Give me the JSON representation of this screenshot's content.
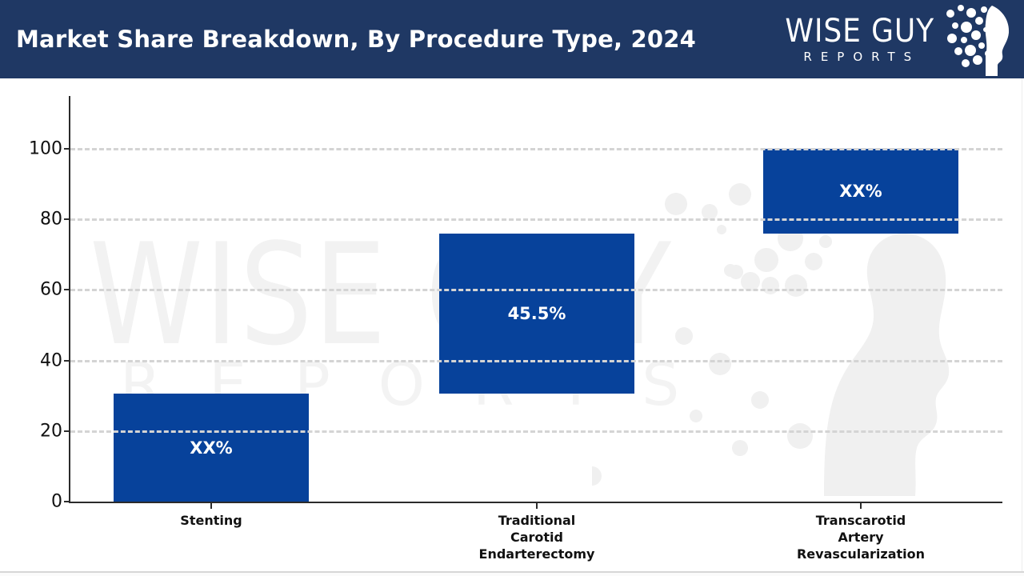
{
  "header": {
    "title": "Market Share Breakdown, By Procedure Type, 2024",
    "logo_name": "WISE GUY",
    "logo_sub": "REPORTS"
  },
  "watermark": {
    "line1": "WISE GUY",
    "line2": "REPORTS"
  },
  "colors": {
    "header_bg": "#1F3864",
    "bar": "#07429B",
    "grid": "#d4d4d4",
    "axis": "#2b2b2b",
    "bar_label": "#ffffff",
    "watermark": "#f2f2f2"
  },
  "chart_data": {
    "type": "bar",
    "subtype": "waterfall-floating-bars",
    "title": "Market Share Breakdown, By Procedure Type, 2024",
    "categories": [
      "Stenting",
      "Traditional Carotid Endarterectomy",
      "Transcarotid Artery Revascularization"
    ],
    "category_lines": [
      [
        "Stenting"
      ],
      [
        "Traditional",
        "Carotid",
        "Endarterectomy"
      ],
      [
        "Transcarotid",
        "Artery",
        "Revascularization"
      ]
    ],
    "bars": [
      {
        "category": "Stenting",
        "start": 0,
        "end": 30.5,
        "label": "XX%"
      },
      {
        "category": "Traditional Carotid Endarterectomy",
        "start": 30.5,
        "end": 76.0,
        "label": "45.5%"
      },
      {
        "category": "Transcarotid Artery Revascularization",
        "start": 76.0,
        "end": 100,
        "label": "XX%"
      }
    ],
    "ylim": [
      0,
      100
    ],
    "yticks": [
      0,
      20,
      40,
      60,
      80,
      100
    ],
    "xlabel": "",
    "ylabel": "",
    "grid": "horizontal-dashed",
    "legend": "none"
  }
}
